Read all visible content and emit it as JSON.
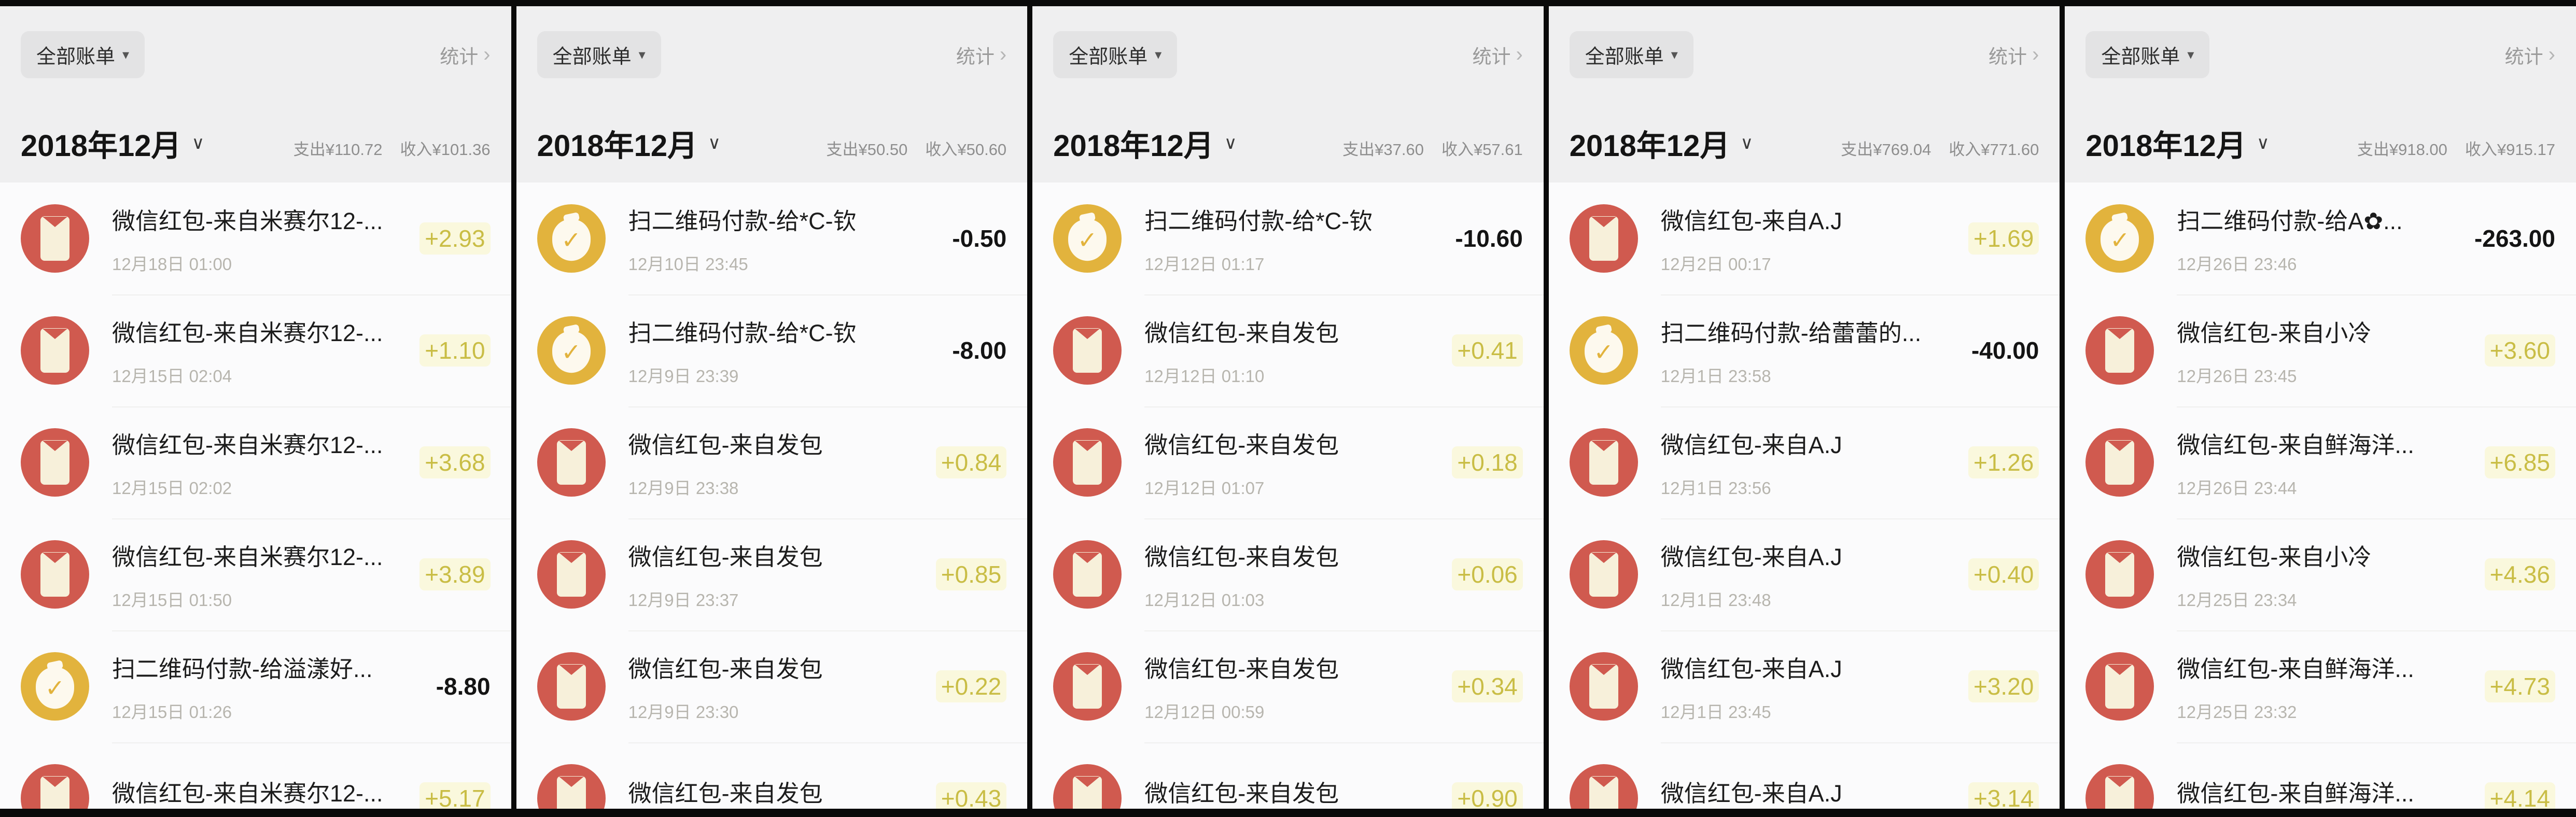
{
  "header": {
    "filter_label": "全部账单",
    "filter_caret": "▾",
    "stats_label": "统计",
    "stats_chevron": "›",
    "month_label": "2018年12月",
    "month_caret": "∨"
  },
  "colors": {
    "income_amount": "#c9bd45",
    "expense_amount": "#141414",
    "red_envelope_icon": "#d05a4f",
    "money_pouch_icon": "#e2b33d",
    "header_background": "#efeff0",
    "list_background": "#fbfbfc",
    "date_text": "#b7b5ae"
  },
  "panels": [
    {
      "summary": {
        "expense": "支出¥110.72",
        "income": "收入¥101.36"
      },
      "rows": [
        {
          "icon": "red-envelope",
          "title": "微信红包-来自米赛尔12-...",
          "date": "12月18日 01:00",
          "amount": "+2.93",
          "direction": "income"
        },
        {
          "icon": "red-envelope",
          "title": "微信红包-来自米赛尔12-...",
          "date": "12月15日 02:04",
          "amount": "+1.10",
          "direction": "income"
        },
        {
          "icon": "red-envelope",
          "title": "微信红包-来自米赛尔12-...",
          "date": "12月15日 02:02",
          "amount": "+3.68",
          "direction": "income"
        },
        {
          "icon": "red-envelope",
          "title": "微信红包-来自米赛尔12-...",
          "date": "12月15日 01:50",
          "amount": "+3.89",
          "direction": "income"
        },
        {
          "icon": "money-pouch",
          "title": "扫二维码付款-给溢漾好...",
          "date": "12月15日 01:26",
          "amount": "-8.80",
          "direction": "expense"
        },
        {
          "icon": "red-envelope",
          "title": "微信红包-来自米赛尔12-...",
          "date": "",
          "amount": "+5.17",
          "direction": "income"
        }
      ]
    },
    {
      "summary": {
        "expense": "支出¥50.50",
        "income": "收入¥50.60"
      },
      "rows": [
        {
          "icon": "money-pouch",
          "title": "扫二维码付款-给*C-钦",
          "date": "12月10日 23:45",
          "amount": "-0.50",
          "direction": "expense"
        },
        {
          "icon": "money-pouch",
          "title": "扫二维码付款-给*C-钦",
          "date": "12月9日 23:39",
          "amount": "-8.00",
          "direction": "expense"
        },
        {
          "icon": "red-envelope",
          "title": "微信红包-来自发包",
          "date": "12月9日 23:38",
          "amount": "+0.84",
          "direction": "income"
        },
        {
          "icon": "red-envelope",
          "title": "微信红包-来自发包",
          "date": "12月9日 23:37",
          "amount": "+0.85",
          "direction": "income"
        },
        {
          "icon": "red-envelope",
          "title": "微信红包-来自发包",
          "date": "12月9日 23:30",
          "amount": "+0.22",
          "direction": "income"
        },
        {
          "icon": "red-envelope",
          "title": "微信红包-来自发包",
          "date": "",
          "amount": "+0.43",
          "direction": "income"
        }
      ]
    },
    {
      "summary": {
        "expense": "支出¥37.60",
        "income": "收入¥57.61"
      },
      "rows": [
        {
          "icon": "money-pouch",
          "title": "扫二维码付款-给*C-钦",
          "date": "12月12日 01:17",
          "amount": "-10.60",
          "direction": "expense"
        },
        {
          "icon": "red-envelope",
          "title": "微信红包-来自发包",
          "date": "12月12日 01:10",
          "amount": "+0.41",
          "direction": "income"
        },
        {
          "icon": "red-envelope",
          "title": "微信红包-来自发包",
          "date": "12月12日 01:07",
          "amount": "+0.18",
          "direction": "income"
        },
        {
          "icon": "red-envelope",
          "title": "微信红包-来自发包",
          "date": "12月12日 01:03",
          "amount": "+0.06",
          "direction": "income"
        },
        {
          "icon": "red-envelope",
          "title": "微信红包-来自发包",
          "date": "12月12日 00:59",
          "amount": "+0.34",
          "direction": "income"
        },
        {
          "icon": "red-envelope",
          "title": "微信红包-来自发包",
          "date": "",
          "amount": "+0.90",
          "direction": "income"
        }
      ]
    },
    {
      "summary": {
        "expense": "支出¥769.04",
        "income": "收入¥771.60"
      },
      "rows": [
        {
          "icon": "red-envelope",
          "title": "微信红包-来自A.J",
          "date": "12月2日 00:17",
          "amount": "+1.69",
          "direction": "income"
        },
        {
          "icon": "money-pouch",
          "title": "扫二维码付款-给蕾蕾的...",
          "date": "12月1日 23:58",
          "amount": "-40.00",
          "direction": "expense"
        },
        {
          "icon": "red-envelope",
          "title": "微信红包-来自A.J",
          "date": "12月1日 23:56",
          "amount": "+1.26",
          "direction": "income"
        },
        {
          "icon": "red-envelope",
          "title": "微信红包-来自A.J",
          "date": "12月1日 23:48",
          "amount": "+0.40",
          "direction": "income"
        },
        {
          "icon": "red-envelope",
          "title": "微信红包-来自A.J",
          "date": "12月1日 23:45",
          "amount": "+3.20",
          "direction": "income"
        },
        {
          "icon": "red-envelope",
          "title": "微信红包-来自A.J",
          "date": "",
          "amount": "+3.14",
          "direction": "income"
        }
      ]
    },
    {
      "summary": {
        "expense": "支出¥918.00",
        "income": "收入¥915.17"
      },
      "rows": [
        {
          "icon": "money-pouch",
          "title": "扫二维码付款-给A✿...",
          "date": "12月26日 23:46",
          "amount": "-263.00",
          "direction": "expense"
        },
        {
          "icon": "red-envelope",
          "title": "微信红包-来自小冷",
          "date": "12月26日 23:45",
          "amount": "+3.60",
          "direction": "income"
        },
        {
          "icon": "red-envelope",
          "title": "微信红包-来自鲜海洋...",
          "date": "12月26日 23:44",
          "amount": "+6.85",
          "direction": "income"
        },
        {
          "icon": "red-envelope",
          "title": "微信红包-来自小冷",
          "date": "12月25日 23:34",
          "amount": "+4.36",
          "direction": "income"
        },
        {
          "icon": "red-envelope",
          "title": "微信红包-来自鲜海洋...",
          "date": "12月25日 23:32",
          "amount": "+4.73",
          "direction": "income"
        },
        {
          "icon": "red-envelope",
          "title": "微信红包-来自鲜海洋...",
          "date": "",
          "amount": "+4.14",
          "direction": "income"
        }
      ]
    }
  ]
}
